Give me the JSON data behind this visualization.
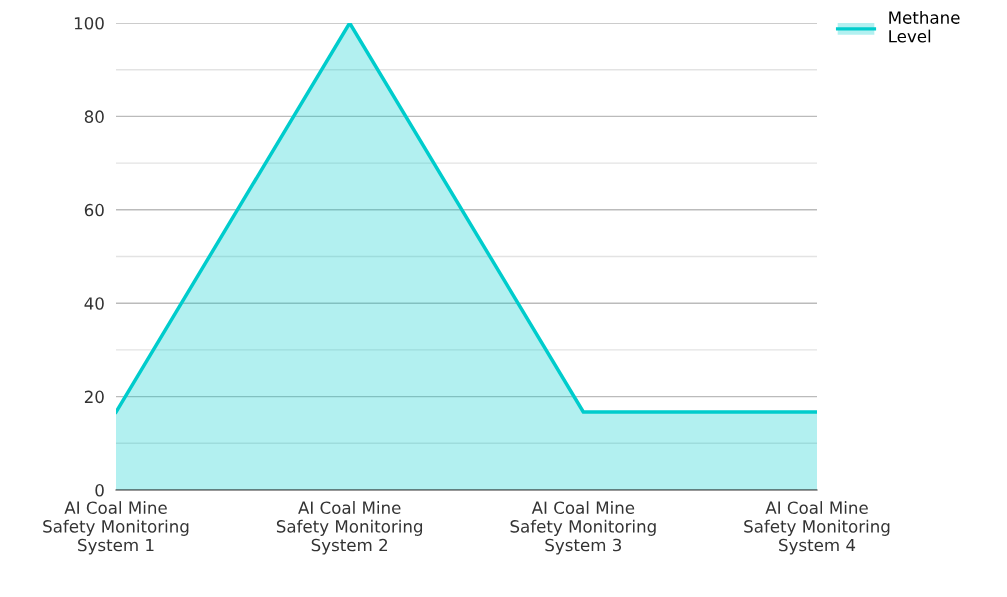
{
  "chart_data": {
    "type": "area",
    "categories": [
      "AI Coal Mine\nSafety Monitoring\nSystem 1",
      "AI Coal Mine\nSafety Monitoring\nSystem 2",
      "AI Coal Mine\nSafety Monitoring\nSystem 3",
      "AI Coal Mine\nSafety Monitoring\nSystem 4"
    ],
    "series": [
      {
        "name": "Methane\nLevel",
        "color": "#00cccc",
        "values": [
          16.7,
          100,
          16.7,
          16.7
        ]
      }
    ],
    "ylim": [
      0,
      100
    ],
    "yticks": [
      0,
      {
        "value": 10,
        "label": null
      },
      20,
      {
        "value": 30,
        "label": null
      },
      40,
      {
        "value": 50,
        "label": null
      },
      60,
      {
        "value": 70,
        "label": null
      },
      80,
      {
        "value": 90,
        "label": null
      },
      100
    ],
    "grid": "y",
    "legend": "top right"
  }
}
